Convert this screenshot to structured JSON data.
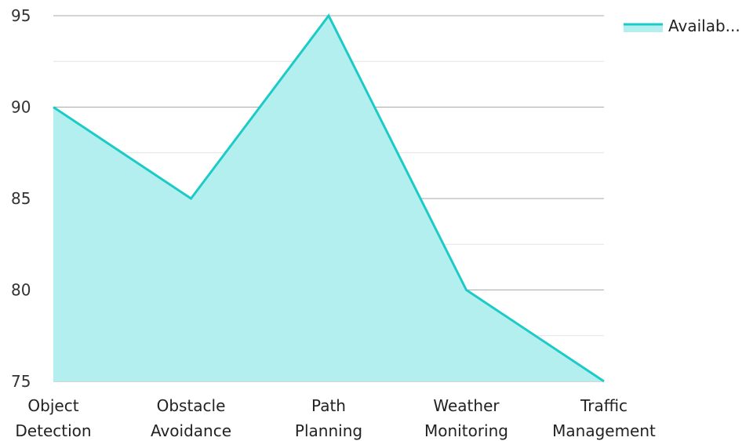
{
  "chart_data": {
    "type": "area",
    "categories": [
      [
        "Object",
        "Detection"
      ],
      [
        "Obstacle",
        "Avoidance"
      ],
      [
        "Path",
        "Planning"
      ],
      [
        "Weather",
        "Monitoring"
      ],
      [
        "Traffic",
        "Management"
      ]
    ],
    "series": [
      {
        "name": "Availab...",
        "values": [
          90,
          85,
          95,
          80,
          75
        ]
      }
    ],
    "ylim": [
      75,
      95
    ],
    "yticks": [
      75,
      80,
      85,
      90,
      95
    ],
    "grid": true,
    "legend_position": "top-right",
    "colors": {
      "line": "#1ccbc8",
      "fill": "#b2efee",
      "grid_major": "#aaaaaa",
      "grid_minor": "#e3e3e3"
    }
  }
}
